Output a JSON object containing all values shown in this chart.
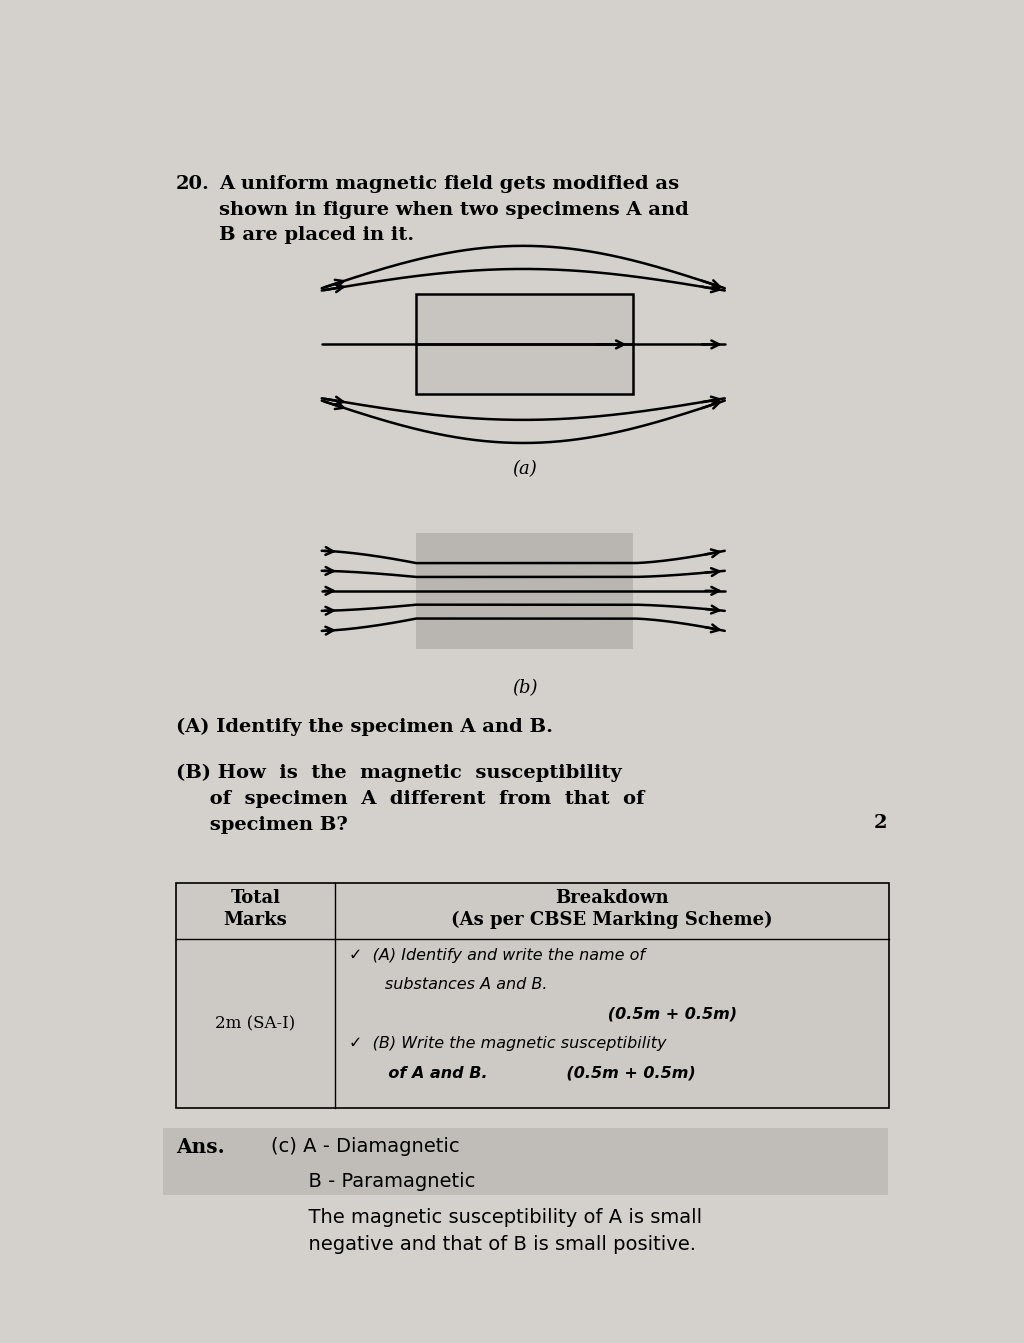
{
  "bg_color": "#d4d0cc",
  "question_number": "20.",
  "question_text": "A uniform magnetic field gets modified as\nshown in figure when two specimens A and\nB are placed in it.",
  "fig_a_label": "(a)",
  "fig_b_label": "(b)",
  "sub_question_A": "(A) Identify the specimen A and B.",
  "sub_question_B": "(B) How  is  the  magnetic  susceptibility\n     of  specimen  A  different  from  that  of\n     specimen B?",
  "marks_number": "2",
  "table_header_col1": "Total\nMarks",
  "table_header_col2": "Breakdown\n(As per CBSE Marking Scheme)",
  "table_row1_col1": "2m (SA-I)",
  "ans_label": "Ans.",
  "ans_part_c": "(c) A - Diamagnetic",
  "ans_part_b": "      B - Paramagnetic",
  "ans_part_text": "      The magnetic susceptibility of A is small\n      negative and that of B is small positive.",
  "ans_bg": "#c0bdb8"
}
